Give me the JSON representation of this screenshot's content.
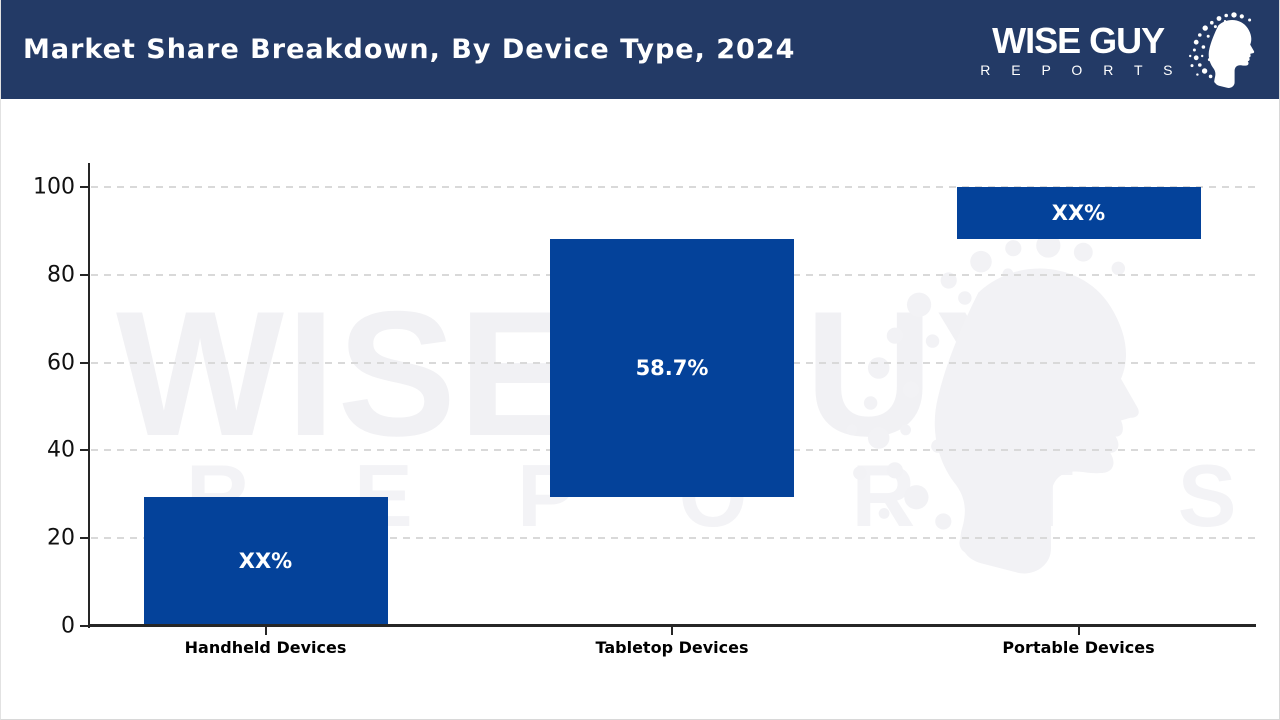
{
  "header": {
    "title": "Market Share Breakdown, By Device Type, 2024",
    "bg_color": "#233a66",
    "logo_line1": "WISE GUY",
    "logo_line2": "R E P O R T S"
  },
  "watermark": {
    "line1": "WISE GUY",
    "line2": "R E P O R T S"
  },
  "chart_data": {
    "type": "bar",
    "subtype": "waterfall",
    "title": "Market Share Breakdown, By Device Type, 2024",
    "categories": [
      "Handheld Devices",
      "Tabletop Devices",
      "Portable Devices"
    ],
    "bars": [
      {
        "category": "Handheld Devices",
        "start": 0,
        "end": 29.4,
        "label": "XX%"
      },
      {
        "category": "Tabletop Devices",
        "start": 29.4,
        "end": 88.1,
        "label": "58.7%"
      },
      {
        "category": "Portable Devices",
        "start": 88.1,
        "end": 100,
        "label": "XX%"
      }
    ],
    "yticks": [
      0,
      20,
      40,
      60,
      80,
      100
    ],
    "ylim": [
      0,
      105
    ],
    "xlabel": "",
    "ylabel": "",
    "grid": "horizontal-dashed",
    "legend": "none",
    "bar_color": "#04429a",
    "bar_label_color": "#ffffff",
    "axis_color": "#262626",
    "grid_color": "#d9d9d9"
  }
}
